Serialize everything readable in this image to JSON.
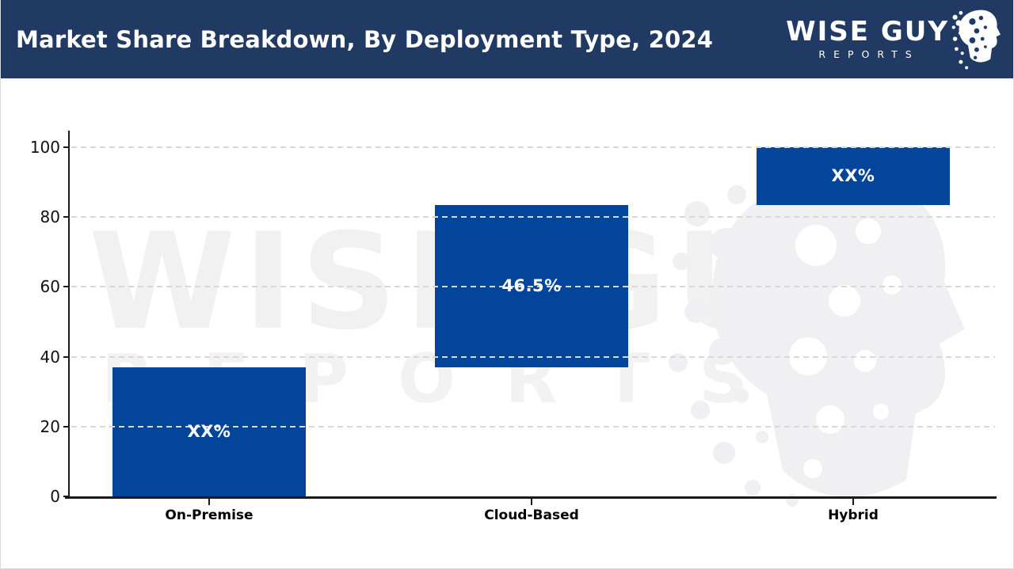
{
  "header": {
    "title": "Market Share Breakdown, By Deployment Type, 2024",
    "logo": {
      "name": "WISE GUY",
      "sub": "REPORTS"
    }
  },
  "watermark": {
    "name": "WISE GUY",
    "sub": "REPORTS"
  },
  "chart_data": {
    "type": "bar",
    "variant": "waterfall",
    "title": "Market Share Breakdown, By Deployment Type, 2024",
    "categories": [
      "On-Premise",
      "Cloud-Based",
      "Hybrid"
    ],
    "series": [
      {
        "name": "On-Premise",
        "from": 0,
        "to": 37,
        "label": "XX%"
      },
      {
        "name": "Cloud-Based",
        "from": 37,
        "to": 83.5,
        "label": "46.5%"
      },
      {
        "name": "Hybrid",
        "from": 83.5,
        "to": 100,
        "label": "XX%"
      }
    ],
    "yticks": [
      0,
      20,
      40,
      60,
      80,
      100
    ],
    "ylim": [
      0,
      104.5
    ],
    "xlabel": "",
    "ylabel": "",
    "grid": "horizontal-dashed",
    "legend": "none",
    "bar_color": "#04459C"
  },
  "colors": {
    "header_bg": "#203A64",
    "bar": "#04459C",
    "grid": "#D8D8D8",
    "axis": "#1A1A1A",
    "bar_label": "#FFFFFF",
    "watermark": "#F1F1F2"
  }
}
